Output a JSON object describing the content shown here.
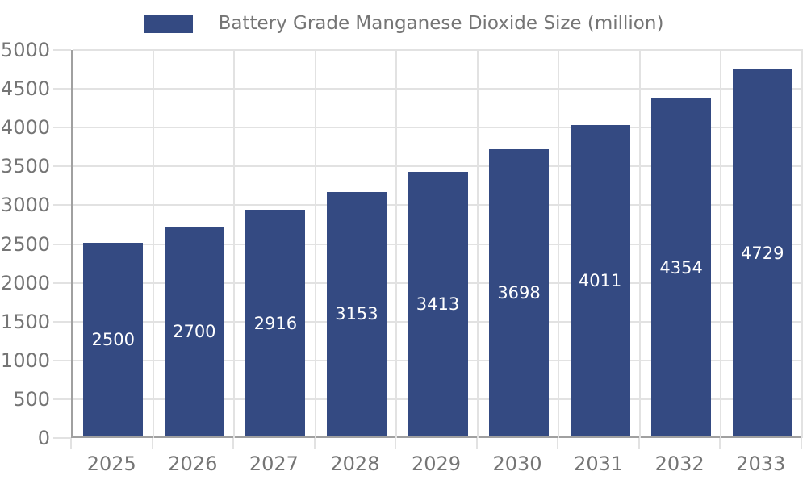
{
  "legend": {
    "label": "Battery Grade Manganese Dioxide Size (million)",
    "swatch_color": "#344a82"
  },
  "colors": {
    "bar": "#344a82",
    "bar_label": "#ffffff",
    "axis_line": "#a0a0a0",
    "gridline": "#e2e2e2",
    "tick_text": "#757575",
    "background": "#ffffff"
  },
  "chart_data": {
    "type": "bar",
    "title": "Battery Grade Manganese Dioxide Size (million)",
    "categories": [
      "2025",
      "2026",
      "2027",
      "2028",
      "2029",
      "2030",
      "2031",
      "2032",
      "2033"
    ],
    "values": [
      2500,
      2700,
      2916,
      3153,
      3413,
      3698,
      4011,
      4354,
      4729
    ],
    "xlabel": "",
    "ylabel": "",
    "ylim": [
      0,
      5000
    ],
    "yticks": [
      0,
      500,
      1000,
      1500,
      2000,
      2500,
      3000,
      3500,
      4000,
      4500,
      5000
    ],
    "grid": true,
    "legend_position": "top",
    "bar_labels_inside": true
  }
}
